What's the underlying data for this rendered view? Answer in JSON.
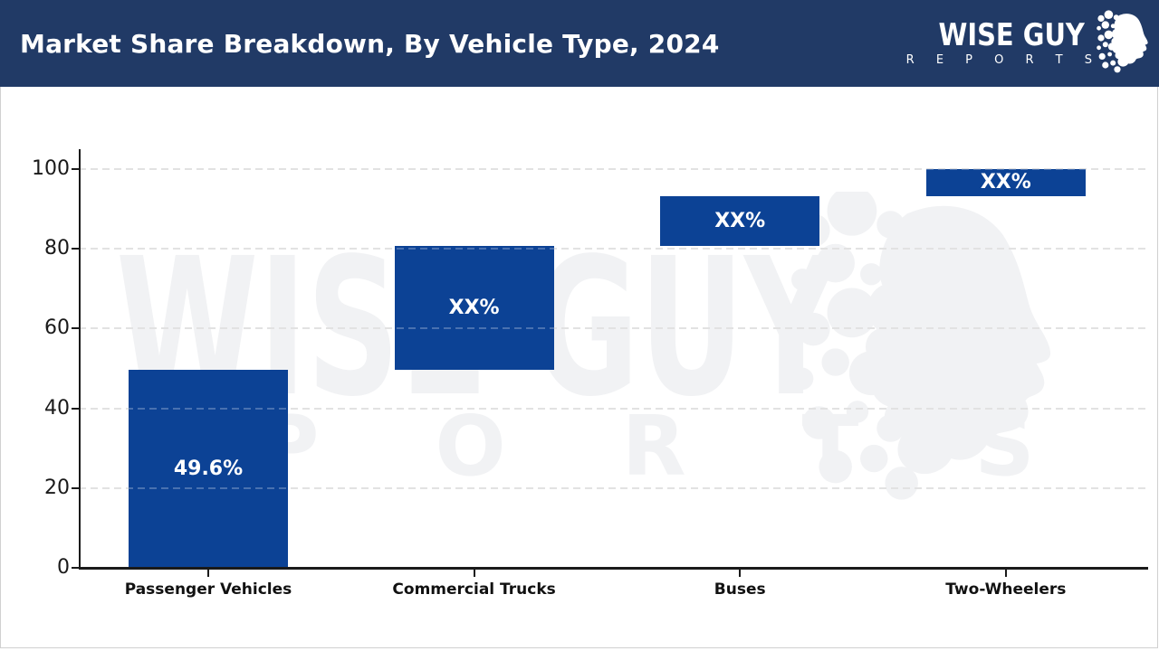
{
  "header": {
    "title": "Market Share Breakdown, By Vehicle Type, 2024",
    "logo": {
      "line1": "WISE GUY",
      "line2": "R E P O R T S"
    }
  },
  "watermark": {
    "line1": "WISE GUY",
    "line2": "P O R T S"
  },
  "chart_data": {
    "type": "bar",
    "subtype": "waterfall",
    "title": "Market Share Breakdown, By Vehicle Type, 2024",
    "categories": [
      "Passenger Vehicles",
      "Commercial Trucks",
      "Buses",
      "Two-Wheelers"
    ],
    "bars": [
      {
        "category": "Passenger Vehicles",
        "start": 0,
        "end": 49.6,
        "label": "49.6%"
      },
      {
        "category": "Commercial Trucks",
        "start": 49.6,
        "end": 80.8,
        "label": "XX%"
      },
      {
        "category": "Buses",
        "start": 80.8,
        "end": 93.2,
        "label": "XX%"
      },
      {
        "category": "Two-Wheelers",
        "start": 93.2,
        "end": 100,
        "label": "XX%"
      }
    ],
    "yticks": [
      0,
      20,
      40,
      60,
      80,
      100
    ],
    "ylim": [
      0,
      105
    ],
    "grid": "horizontal-dashed",
    "legend": "none",
    "bar_color": "#0c4295",
    "value_label_color": "#ffffff"
  },
  "colors": {
    "header_bg": "#213a66",
    "header_text": "#ffffff",
    "bar": "#0c4295",
    "axis": "#1a1a1a",
    "grid": "#d8d8d8",
    "watermark": "#f1f2f4",
    "card_border": "#d0d0d0"
  }
}
